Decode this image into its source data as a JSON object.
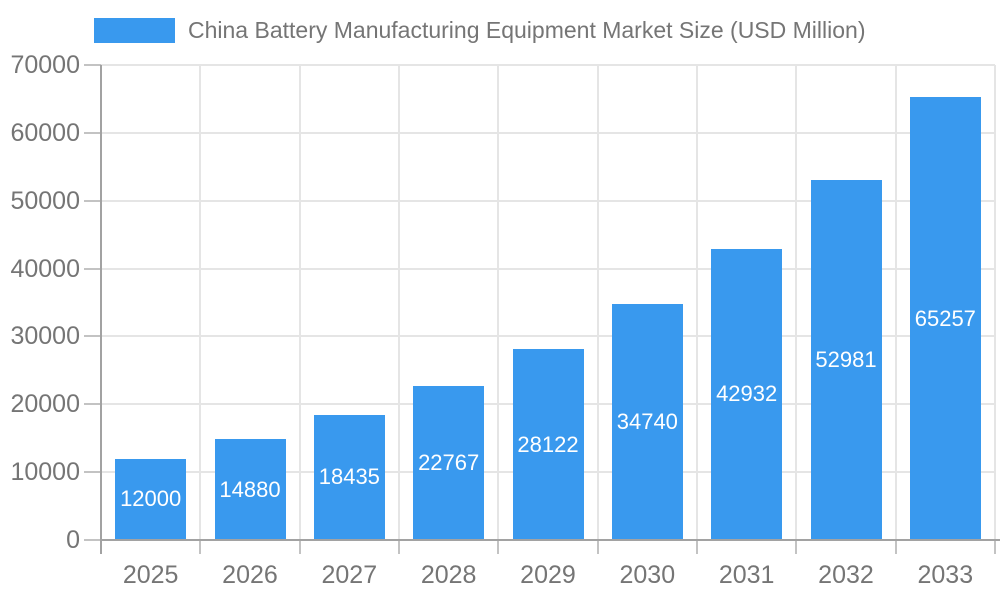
{
  "legend": {
    "label": "China Battery Manufacturing Equipment Market Size (USD Million)"
  },
  "chart_data": {
    "type": "bar",
    "title": "China Battery Manufacturing Equipment Market Size (USD Million)",
    "categories": [
      "2025",
      "2026",
      "2027",
      "2028",
      "2029",
      "2030",
      "2031",
      "2032",
      "2033"
    ],
    "series": [
      {
        "name": "China Battery Manufacturing Equipment Market Size (USD Million)",
        "values": [
          12000,
          14880,
          18435,
          22767,
          28122,
          34740,
          42932,
          52981,
          65257
        ]
      }
    ],
    "bar_labels": [
      12000,
      14880,
      18435,
      22767,
      28122,
      34740,
      42932,
      52981,
      65257
    ],
    "xlabel": "",
    "ylabel": "",
    "ylim": [
      0,
      70000
    ],
    "ytick_step": 10000,
    "yticks": [
      0,
      10000,
      20000,
      30000,
      40000,
      50000,
      60000,
      70000
    ],
    "grid": true,
    "legend_position": "top-left",
    "colors": {
      "bar": "#3999ee",
      "bar_label_text": "#ffffff",
      "axis_line": "#a2a2a2",
      "grid_line": "#e5e5e5",
      "tick_line": "#c3c3c3",
      "axis_text": "#757575",
      "title_text": "#757575",
      "background": "#ffffff"
    }
  }
}
